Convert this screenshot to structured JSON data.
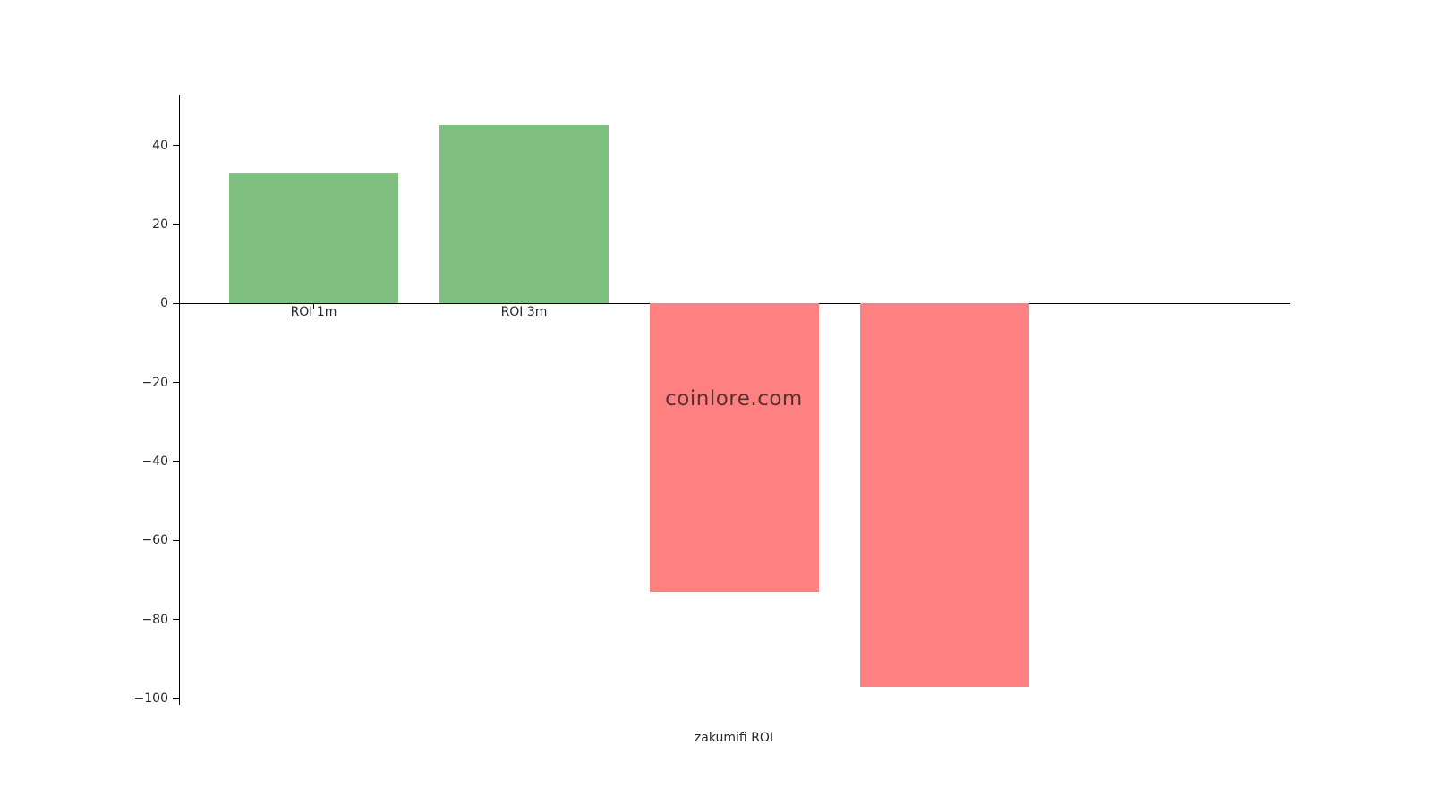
{
  "chart_data": {
    "type": "bar",
    "title": "",
    "xlabel": "zakumifi ROI",
    "ylabel": "",
    "watermark": "coinlore.com",
    "categories": [
      "ROI 1m",
      "ROI 3m",
      "",
      ""
    ],
    "values": [
      33,
      45,
      -73,
      -97
    ],
    "bar_colors": [
      "#7fbf7f",
      "#7fbf7f",
      "#ff8080",
      "#ff8080"
    ],
    "positive_color": "#7fbf7f",
    "negative_color": "#ff8080",
    "yticks": [
      40,
      20,
      0,
      -20,
      -40,
      -60,
      -80,
      -100
    ],
    "ytick_labels": [
      "40",
      "20",
      "0",
      "−20",
      "−40",
      "−60",
      "−80",
      "−100"
    ],
    "ylim": [
      -101.6,
      52.8
    ],
    "grid": false,
    "legend_position": "none",
    "axis_color": "#000000",
    "text_color": "#262626"
  }
}
